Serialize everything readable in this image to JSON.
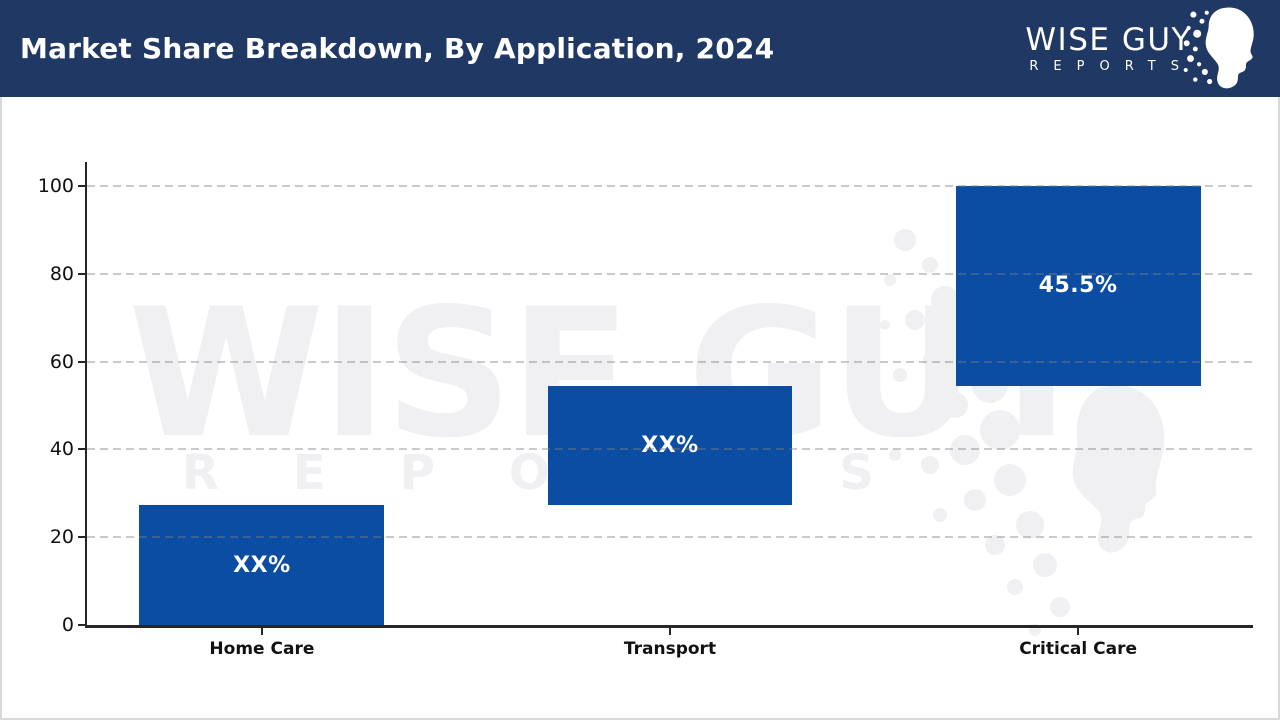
{
  "header": {
    "title": "Market Share Breakdown, By Application, 2024",
    "logo": {
      "wordmark": "WISE GUY",
      "subtext": "REPORTS"
    }
  },
  "watermark": {
    "wordmark": "WISE GUY",
    "subtext": "REPORTS"
  },
  "colors": {
    "header_bg": "#203864",
    "bar_fill": "#0b4da2",
    "grid": "#d9d9d9",
    "axis": "#262626",
    "bar_label": "#ffffff",
    "watermark": "#f0f0f3"
  },
  "chart_data": {
    "type": "bar",
    "subtype": "floating-segment-breakdown",
    "title": "Market Share Breakdown, By Application, 2024",
    "categories": [
      "Home Care",
      "Transport",
      "Critical Care"
    ],
    "segments": [
      {
        "category": "Home Care",
        "start": 0,
        "end": 27.3,
        "label": "XX%"
      },
      {
        "category": "Transport",
        "start": 27.3,
        "end": 54.5,
        "label": "XX%"
      },
      {
        "category": "Critical Care",
        "start": 54.5,
        "end": 100,
        "label": "45.5%"
      }
    ],
    "yticks": [
      0,
      20,
      40,
      60,
      80,
      100
    ],
    "ylim": [
      0,
      100
    ],
    "xlabel": "",
    "ylabel": "",
    "grid": "dashed horizontal, drawn over bars",
    "legend": null
  }
}
